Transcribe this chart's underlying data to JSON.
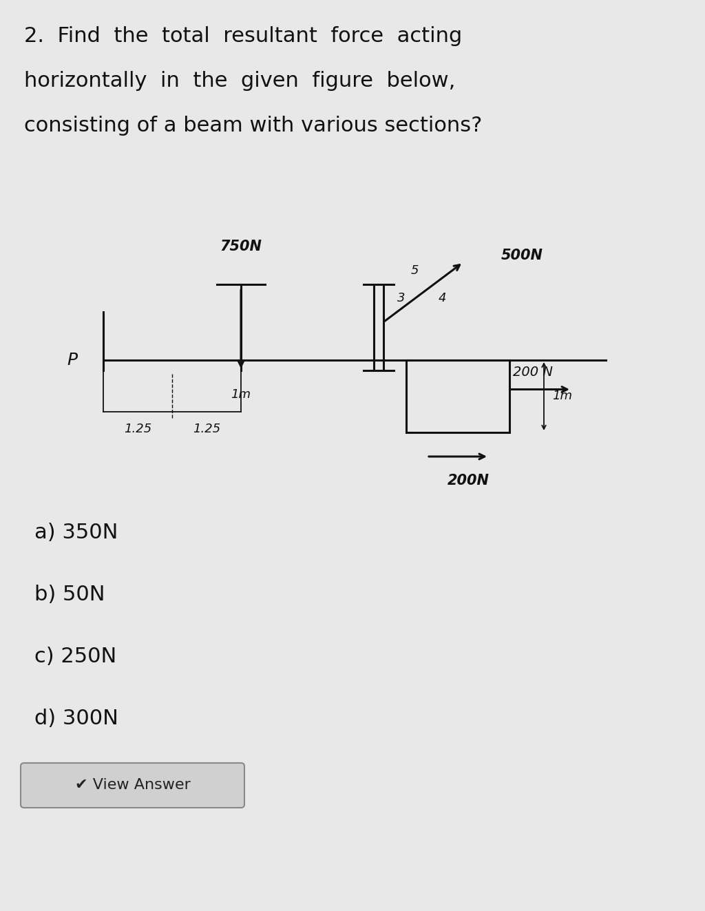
{
  "bg_color": "#e8e8e8",
  "title_line1": "2.  Find  the  total  resultant  force  acting",
  "title_line2": "horizontally  in  the  given  figure  below,",
  "title_line3": "consisting of a beam with various sections?",
  "title_fontsize": 22,
  "choices": [
    "a) 350N",
    "b) 50N",
    "c) 250N",
    "d) 300N"
  ],
  "choice_fontsize": 22,
  "view_answer_text": "✔ View Answer",
  "fig_width": 10.24,
  "fig_height": 13.23,
  "line_color": "#111111",
  "label_color": "#111111"
}
